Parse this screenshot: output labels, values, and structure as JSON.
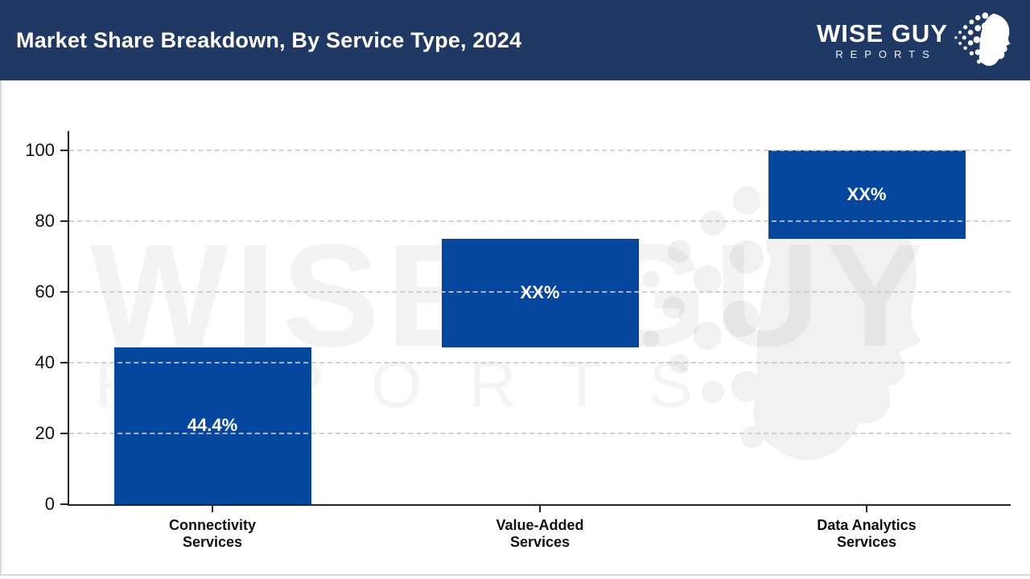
{
  "header": {
    "title": "Market Share Breakdown, By Service Type, 2024",
    "logo": {
      "line1": "WISE GUY",
      "line2": "REPORTS"
    }
  },
  "watermark": {
    "line1": "WISE GUY",
    "line2": "REPORTS"
  },
  "chart_data": {
    "type": "bar",
    "subtype": "floating-waterfall",
    "title": "Market Share Breakdown, By Service Type, 2024",
    "categories": [
      "Connectivity Services",
      "Value-Added Services",
      "Data Analytics Services"
    ],
    "segments": [
      {
        "category": "Connectivity Services",
        "start": 0,
        "end": 44.4,
        "label": "44.4%"
      },
      {
        "category": "Value-Added Services",
        "start": 44.4,
        "end": 75,
        "label": "XX%"
      },
      {
        "category": "Data Analytics Services",
        "start": 75,
        "end": 100,
        "label": "XX%"
      }
    ],
    "ylim": [
      0,
      100
    ],
    "yticks": [
      0,
      20,
      40,
      60,
      80,
      100
    ],
    "gridlines_at": [
      20,
      40,
      60,
      80,
      100
    ],
    "grid": "horizontal-dashed",
    "legend": false,
    "bar_color": "#05479e",
    "value_label_color": "#ffffff",
    "header_color": "#1f3864"
  },
  "icons": {
    "logo_face": "dotted-face-profile-icon"
  }
}
